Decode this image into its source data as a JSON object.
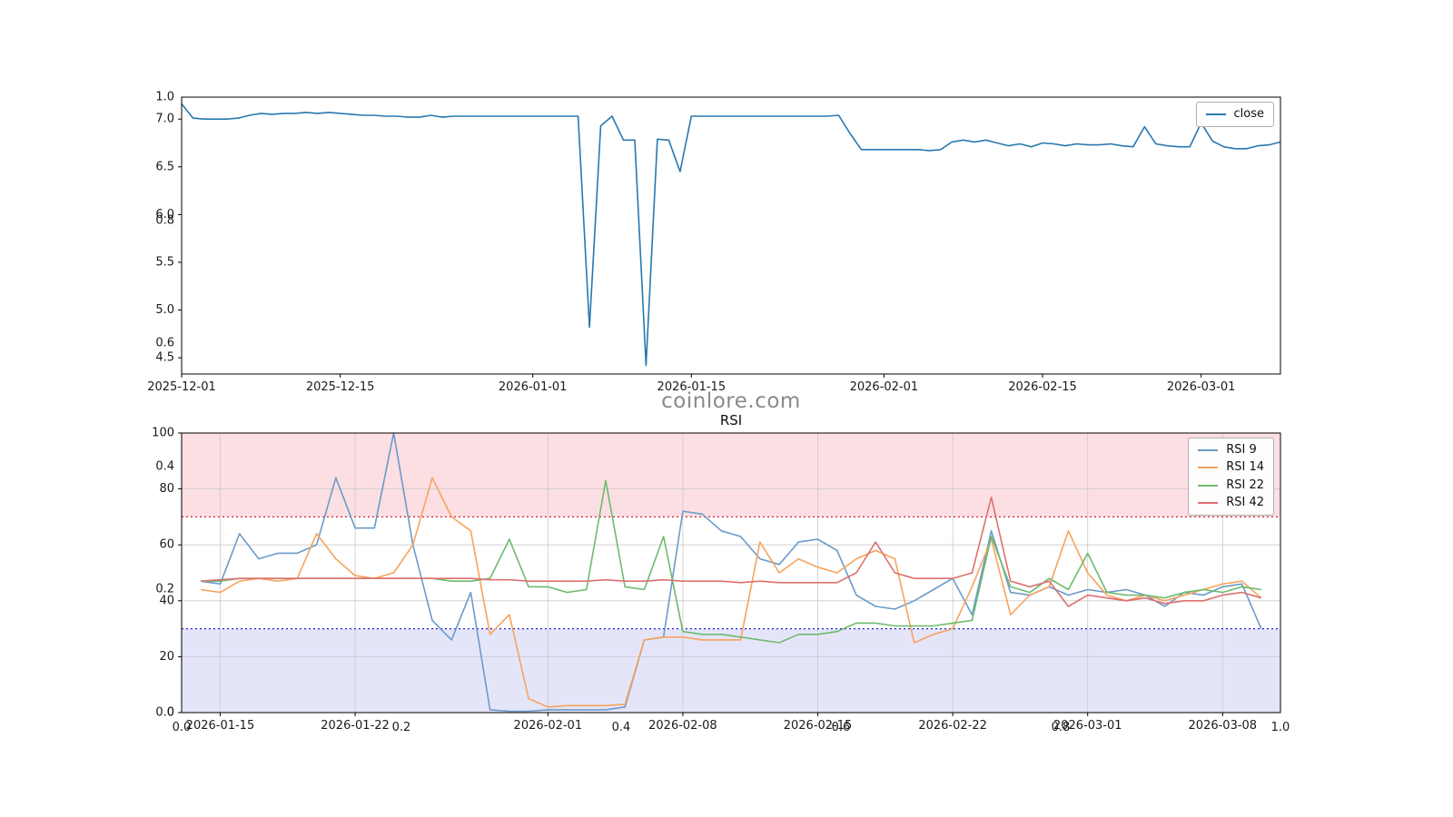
{
  "watermark": {
    "text": "coinlore.com"
  },
  "overlay_axis": {
    "x_ticks": [
      "0.0",
      "0.2",
      "0.4",
      "0.6",
      "0.8",
      "1.0"
    ],
    "y_ticks": [
      "0.0",
      "0.2",
      "0.4",
      "0.6",
      "0.8",
      "1.0"
    ]
  },
  "chart_data": [
    {
      "id": "price",
      "type": "line",
      "title": "",
      "start_date": "2025-12-01",
      "x_domain": [
        0,
        97
      ],
      "x_tick_days": [
        0,
        14,
        31,
        45,
        62,
        76,
        90
      ],
      "x_tick_labels": [
        "2025-12-01",
        "2025-12-15",
        "2026-01-01",
        "2026-01-15",
        "2026-02-01",
        "2026-02-15",
        "2026-03-01"
      ],
      "ylim": [
        4.33,
        7.23
      ],
      "y_ticks": [
        4.5,
        5.0,
        5.5,
        6.0,
        6.5,
        7.0
      ],
      "y_tick_labels": [
        "4.5",
        "5.0",
        "5.5",
        "6.0",
        "6.5",
        "7.0"
      ],
      "grid": false,
      "legend_position": "upper right",
      "series": [
        {
          "name": "close",
          "color": "#2878b0",
          "start_day": 0,
          "values": [
            7.16,
            7.01,
            7.0,
            7.0,
            7.0,
            7.01,
            7.04,
            7.06,
            7.05,
            7.06,
            7.06,
            7.07,
            7.06,
            7.07,
            7.06,
            7.05,
            7.04,
            7.04,
            7.03,
            7.03,
            7.02,
            7.02,
            7.04,
            7.02,
            7.03,
            7.03,
            7.03,
            7.03,
            7.03,
            7.03,
            7.03,
            7.03,
            7.03,
            7.03,
            7.03,
            7.03,
            4.82,
            6.93,
            7.03,
            6.78,
            6.78,
            4.42,
            6.79,
            6.78,
            6.45,
            7.03,
            7.03,
            7.03,
            7.03,
            7.03,
            7.03,
            7.03,
            7.03,
            7.03,
            7.03,
            7.03,
            7.03,
            7.03,
            7.04,
            6.85,
            6.68,
            6.68,
            6.68,
            6.68,
            6.68,
            6.68,
            6.67,
            6.68,
            6.76,
            6.78,
            6.76,
            6.78,
            6.75,
            6.72,
            6.74,
            6.71,
            6.75,
            6.74,
            6.72,
            6.74,
            6.73,
            6.73,
            6.74,
            6.72,
            6.71,
            6.92,
            6.74,
            6.72,
            6.71,
            6.71,
            6.96,
            6.77,
            6.71,
            6.69,
            6.69,
            6.72,
            6.73,
            6.76
          ]
        }
      ]
    },
    {
      "id": "rsi",
      "type": "line",
      "title": "RSI",
      "start_date": "2026-01-13",
      "x_domain": [
        0,
        57
      ],
      "x_tick_days": [
        2,
        9,
        19,
        26,
        33,
        40,
        47,
        54
      ],
      "x_tick_labels": [
        "2026-01-15",
        "2026-01-22",
        "2026-02-01",
        "2026-02-08",
        "2026-02-15",
        "2026-02-22",
        "2026-03-01",
        "2026-03-08"
      ],
      "ylim": [
        0,
        100
      ],
      "y_ticks": [
        0,
        20,
        40,
        60,
        80,
        100
      ],
      "y_tick_labels": [
        "0",
        "20",
        "40",
        "60",
        "80",
        "100"
      ],
      "grid": true,
      "legend_position": "upper right",
      "bands": {
        "overbought": 70,
        "oversold": 30,
        "overbought_band_color": "rgba(240,80,100,0.18)",
        "oversold_band_color": "rgba(95,95,225,0.16)",
        "overbought_line_color": "#cc2233",
        "oversold_line_color": "#2222cc"
      },
      "series": [
        {
          "name": "RSI 9",
          "color": "#6a9bc9",
          "start_day": 1,
          "values": [
            47,
            46,
            64,
            55,
            57,
            57,
            60,
            84,
            66,
            66,
            100,
            60,
            33,
            26,
            43,
            1,
            0.5,
            0.5,
            1,
            1,
            1,
            1,
            2,
            26,
            27,
            72,
            71,
            65,
            63,
            55,
            53,
            61,
            62,
            58,
            42,
            38,
            37,
            40,
            44,
            48,
            35,
            65,
            43,
            42,
            45,
            42,
            44,
            43,
            44,
            42,
            38,
            43,
            42,
            45,
            46,
            30
          ]
        },
        {
          "name": "RSI 14",
          "color": "#f7a35c",
          "start_day": 1,
          "values": [
            44,
            43,
            47,
            48,
            47,
            48,
            64,
            55,
            49,
            48,
            50,
            60,
            84,
            70,
            65,
            28,
            35,
            5,
            2,
            2.5,
            2.5,
            2.5,
            3,
            26,
            27,
            27,
            26,
            26,
            26,
            61,
            50,
            55,
            52,
            50,
            55,
            58,
            55,
            25,
            28,
            30,
            45,
            62,
            35,
            42,
            45,
            65,
            50,
            42,
            40,
            42,
            40,
            42,
            44,
            46,
            47,
            41
          ]
        },
        {
          "name": "RSI 22",
          "color": "#6dbb6d",
          "start_day": 1,
          "values": [
            47,
            47,
            48,
            48,
            48,
            48,
            48,
            48,
            48,
            48,
            48,
            48,
            48,
            47,
            47,
            48,
            62,
            45,
            45,
            43,
            44,
            83,
            45,
            44,
            63,
            29,
            28,
            28,
            27,
            26,
            25,
            28,
            28,
            29,
            32,
            32,
            31,
            31,
            31,
            32,
            33,
            63,
            45,
            43,
            48,
            44,
            57,
            43,
            42,
            42,
            41,
            43,
            44,
            43,
            45,
            44
          ]
        },
        {
          "name": "RSI 42",
          "color": "#dd7070",
          "start_day": 1,
          "values": [
            47,
            47.5,
            48,
            48,
            48,
            48,
            48,
            48,
            48,
            48,
            48,
            48,
            48,
            48,
            48,
            47.5,
            47.5,
            47,
            47,
            47,
            47,
            47.5,
            47,
            47,
            47.5,
            47,
            47,
            47,
            46.5,
            47,
            46.5,
            46.5,
            46.5,
            46.5,
            50,
            61,
            50,
            48,
            48,
            48,
            50,
            77,
            47,
            45,
            47,
            38,
            42,
            41,
            40,
            41,
            39,
            40,
            40,
            42,
            43,
            41
          ]
        }
      ]
    }
  ]
}
